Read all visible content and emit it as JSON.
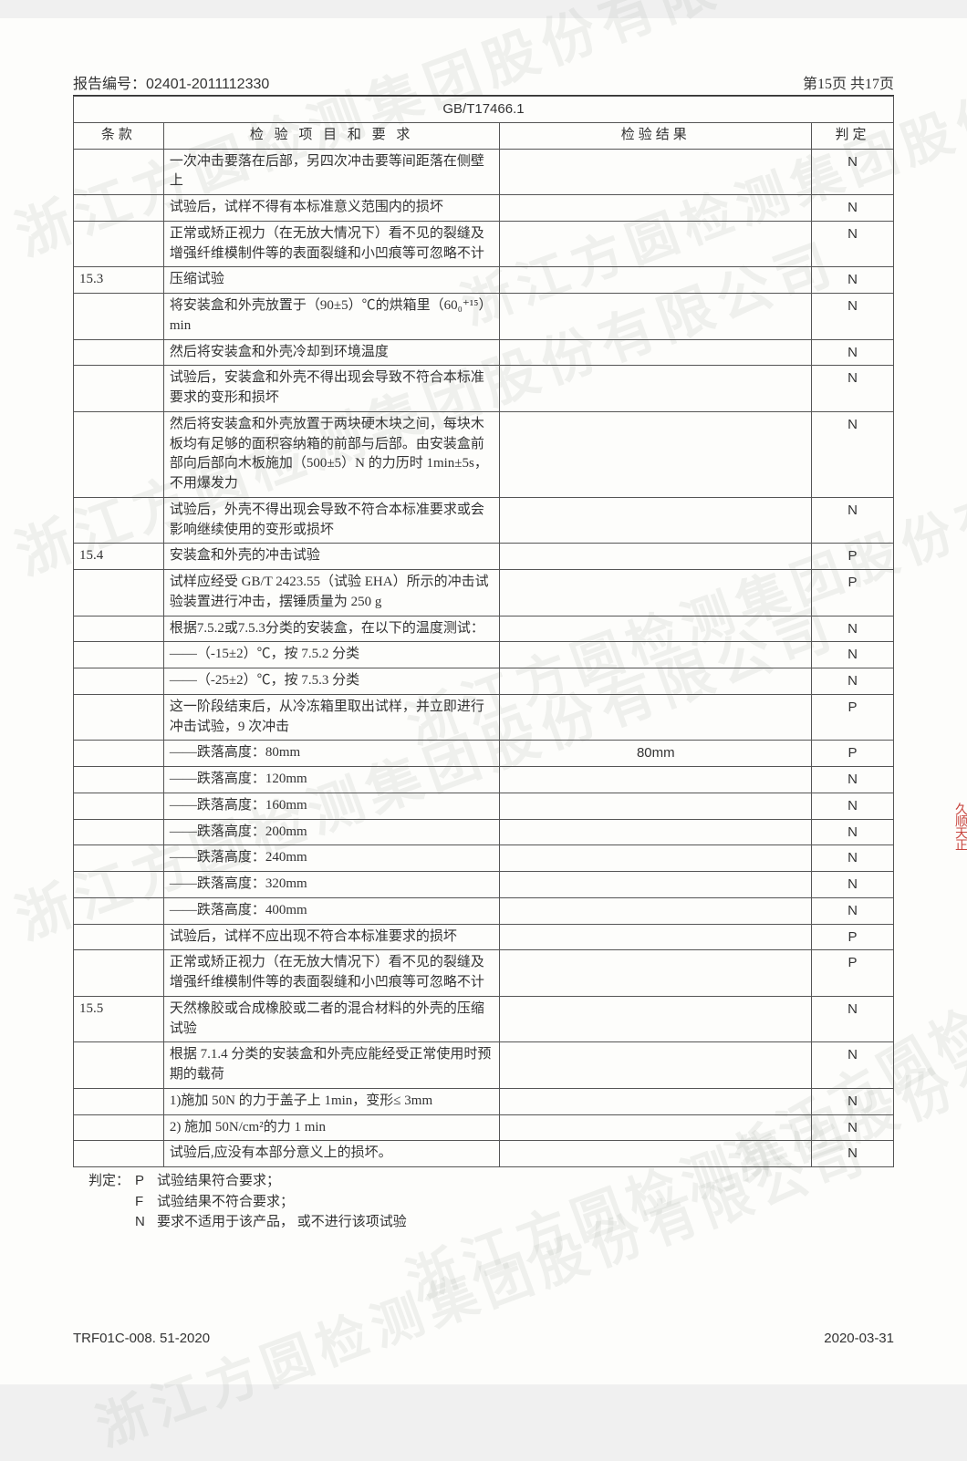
{
  "header": {
    "report_no_label": "报告编号：",
    "report_no": "02401-2011112330",
    "page_info": "第15页 共17页"
  },
  "standard": "GB/T17466.1",
  "columns": {
    "clause": "条款",
    "requirement": "检 验 项 目 和 要 求",
    "result": "检验结果",
    "verdict": "判定"
  },
  "rows": [
    {
      "clause": "",
      "req": "一次冲击要落在后部，另四次冲击要等间距落在侧壁上",
      "result": "",
      "v": "N"
    },
    {
      "clause": "",
      "req": "试验后，试样不得有本标准意义范围内的损坏",
      "result": "",
      "v": "N"
    },
    {
      "clause": "",
      "req": "正常或矫正视力（在无放大情况下）看不见的裂缝及增强纤维模制件等的表面裂缝和小凹痕等可忽略不计",
      "result": "",
      "v": "N"
    },
    {
      "clause": "15.3",
      "req": "压缩试验",
      "result": "",
      "v": "N"
    },
    {
      "clause": "",
      "req": "将安装盒和外壳放置于（90±5）℃的烘箱里（60₀⁺¹⁵）min",
      "result": "",
      "v": "N"
    },
    {
      "clause": "",
      "req": "然后将安装盒和外壳冷却到环境温度",
      "result": "",
      "v": "N"
    },
    {
      "clause": "",
      "req": "试验后，安装盒和外壳不得出现会导致不符合本标准要求的变形和损坏",
      "result": "",
      "v": "N"
    },
    {
      "clause": "",
      "req": "然后将安装盒和外壳放置于两块硬木块之间，每块木板均有足够的面积容纳箱的前部与后部。由安装盒前部向后部向木板施加（500±5）N 的力历时 1min±5s，不用爆发力",
      "result": "",
      "v": "N"
    },
    {
      "clause": "",
      "req": "试验后，外壳不得出现会导致不符合本标准要求或会影响继续使用的变形或损坏",
      "result": "",
      "v": "N"
    },
    {
      "clause": "15.4",
      "req": "安装盒和外壳的冲击试验",
      "result": "",
      "v": "P"
    },
    {
      "clause": "",
      "req": "试样应经受 GB/T 2423.55（试验 EHA）所示的冲击试验装置进行冲击，摆锤质量为 250 g",
      "result": "",
      "v": "P"
    },
    {
      "clause": "",
      "req": "根据7.5.2或7.5.3分类的安装盒，在以下的温度测试：",
      "result": "",
      "v": "N"
    },
    {
      "clause": "",
      "req": "——（-15±2）℃，按 7.5.2 分类",
      "result": "",
      "v": "N"
    },
    {
      "clause": "",
      "req": "——（-25±2）℃，按 7.5.3 分类",
      "result": "",
      "v": "N"
    },
    {
      "clause": "",
      "req": "这一阶段结束后，从冷冻箱里取出试样，并立即进行冲击试验，9 次冲击",
      "result": "",
      "v": "P"
    },
    {
      "clause": "",
      "req": "——跌落高度：80mm",
      "result": "80mm",
      "v": "P"
    },
    {
      "clause": "",
      "req": "——跌落高度：120mm",
      "result": "",
      "v": "N"
    },
    {
      "clause": "",
      "req": "——跌落高度：160mm",
      "result": "",
      "v": "N"
    },
    {
      "clause": "",
      "req": "——跌落高度：200mm",
      "result": "",
      "v": "N"
    },
    {
      "clause": "",
      "req": "——跌落高度：240mm",
      "result": "",
      "v": "N"
    },
    {
      "clause": "",
      "req": "——跌落高度：320mm",
      "result": "",
      "v": "N"
    },
    {
      "clause": "",
      "req": "——跌落高度：400mm",
      "result": "",
      "v": "N"
    },
    {
      "clause": "",
      "req": "试验后，试样不应出现不符合本标准要求的损坏",
      "result": "",
      "v": "P"
    },
    {
      "clause": "",
      "req": "正常或矫正视力（在无放大情况下）看不见的裂缝及增强纤维模制件等的表面裂缝和小凹痕等可忽略不计",
      "result": "",
      "v": "P"
    },
    {
      "clause": "15.5",
      "req": "天然橡胶或合成橡胶或二者的混合材料的外壳的压缩试验",
      "result": "",
      "v": "N"
    },
    {
      "clause": "",
      "req": "根据 7.1.4 分类的安装盒和外壳应能经受正常使用时预期的载荷",
      "result": "",
      "v": "N"
    },
    {
      "clause": "",
      "req": "1)施加 50N 的力于盖子上 1min，变形≤ 3mm",
      "result": "",
      "v": "N"
    },
    {
      "clause": "",
      "req": "2) 施加 50N/cm²的力 1 min",
      "result": "",
      "v": "N"
    },
    {
      "clause": "",
      "req": "试验后,应没有本部分意义上的损坏。",
      "result": "",
      "v": "N"
    }
  ],
  "legend": {
    "prefix": "判定：",
    "P": "试验结果符合要求；",
    "F": "试验结果不符合要求；",
    "N": "要求不适用于该产品， 或不进行该项试验"
  },
  "footer": {
    "form_no": "TRF01C-008. 51-2020",
    "date": "2020-03-31"
  },
  "watermark_text": "浙江方圆检测集团股份有限公司"
}
